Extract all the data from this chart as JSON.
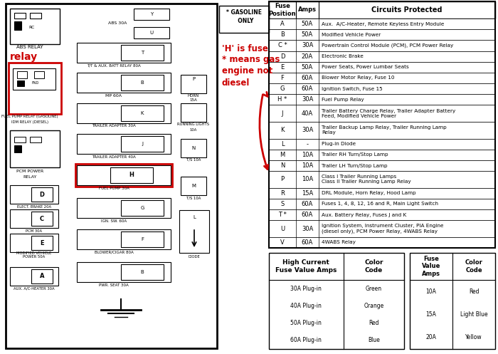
{
  "bg_color": "#ffffff",
  "red_color": "#cc0000",
  "black": "#000000",
  "fuse_table_rows": [
    [
      "A",
      "50A",
      "Aux.  A/C-Heater, Remote Keyless Entry Module"
    ],
    [
      "B",
      "50A",
      "Modified Vehicle Power"
    ],
    [
      "C *",
      "30A",
      "Powertrain Control Module (PCM), PCM Power Relay"
    ],
    [
      "D",
      "20A",
      "Electronic Brake"
    ],
    [
      "E",
      "50A",
      "Power Seats, Power Lumbar Seats"
    ],
    [
      "F",
      "60A",
      "Blower Motor Relay, Fuse 10"
    ],
    [
      "G",
      "60A",
      "Ignition Switch, Fuse 15"
    ],
    [
      "H *",
      "30A",
      "Fuel Pump Relay"
    ],
    [
      "J",
      "40A",
      "Trailer Battery Charge Relay, Trailer Adapter Battery\nFeed, Modified Vehicle Power"
    ],
    [
      "K",
      "30A",
      "Trailer Backup Lamp Relay, Trailer Running Lamp\nRelay"
    ],
    [
      "L",
      "-",
      "Plug-in Diode"
    ],
    [
      "M",
      "10A",
      "Trailer RH Turn/Stop Lamp"
    ],
    [
      "N",
      "10A",
      "Trailer LH Turn/Stop Lamp"
    ],
    [
      "P",
      "10A",
      "Class I Trailer Running Lamps\nClass II Trailer Running Lamp Relay"
    ],
    [
      "R",
      "15A",
      "DRL Module, Horn Relay, Hood Lamp"
    ],
    [
      "S",
      "60A",
      "Fuses 1, 4, 8, 12, 16 and R, Main Light Switch"
    ],
    [
      "T *",
      "60A",
      "Aux. Battery Relay, Fuses J and K"
    ],
    [
      "U",
      "30A",
      "Ignition System, Instrument Cluster, PIA Engine\n(diesel only), PCM Power Relay, 4WABS Relay"
    ],
    [
      "V",
      "60A",
      "4WABS Relay"
    ]
  ],
  "hc_rows": [
    [
      "30A Plug-in",
      "Green"
    ],
    [
      "40A Plug-in",
      "Orange"
    ],
    [
      "50A Plug-in",
      "Red"
    ],
    [
      "60A Plug-in",
      "Blue"
    ]
  ],
  "fv_rows": [
    [
      "10A",
      "Red"
    ],
    [
      "15A",
      "Light Blue"
    ],
    [
      "20A",
      "Yellow"
    ]
  ]
}
